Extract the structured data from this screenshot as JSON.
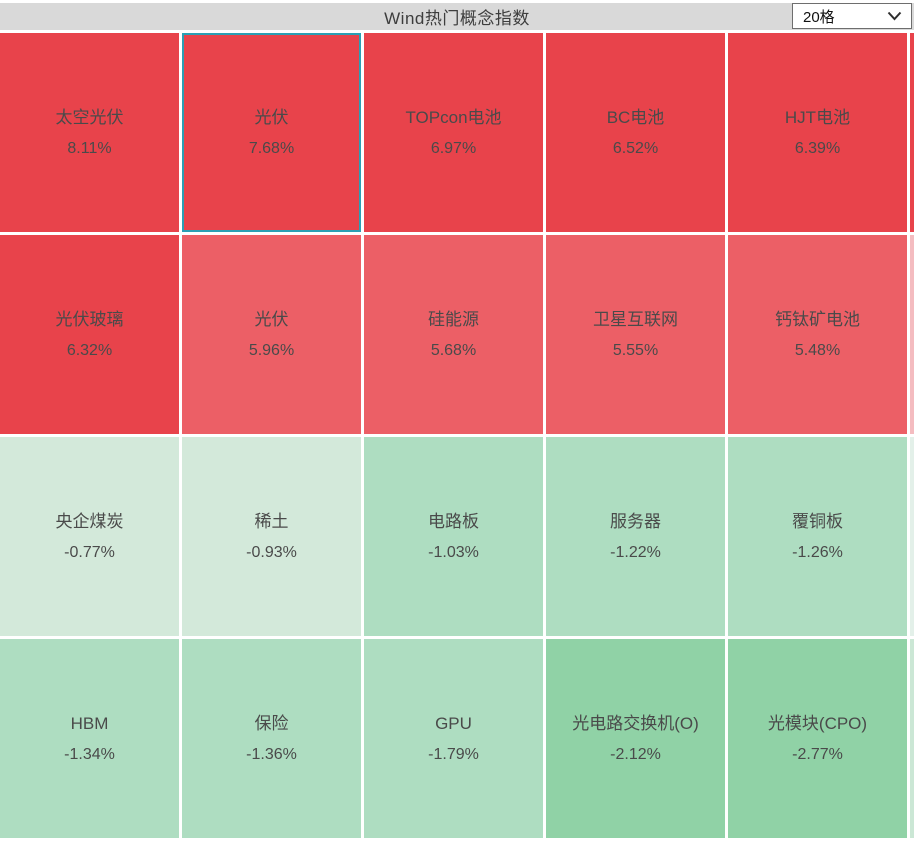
{
  "header": {
    "title": "Wind热门概念指数",
    "grid_selector": {
      "value": "20格",
      "chevron_icon": "chevron-down"
    }
  },
  "colors": {
    "header_bg": "#d9d9d9",
    "selected_cell_border": "#2b9fb4",
    "strong_red": "#e8434b",
    "light_red": "#ec5f66",
    "pale_green": "#d3e9da",
    "medium_green": "#aeddc1",
    "strong_green": "#90d2a6",
    "cell_text": "#4a4a4a"
  },
  "chart_data": {
    "type": "heatmap",
    "title": "Wind热门概念指数",
    "grid": {
      "rows": 4,
      "cols": 5,
      "visible_cells_option": "20格"
    },
    "value_unit": "%",
    "color_rule": "red = positive daily change, green = negative daily change; deeper shade = larger magnitude",
    "cells": [
      {
        "name": "太空光伏",
        "value": 8.11,
        "pct_label": "8.11%",
        "color": "#e8434b",
        "selected": false
      },
      {
        "name": "光伏",
        "value": 7.68,
        "pct_label": "7.68%",
        "color": "#e8434b",
        "selected": true
      },
      {
        "name": "TOPcon电池",
        "value": 6.97,
        "pct_label": "6.97%",
        "color": "#e8434b",
        "selected": false
      },
      {
        "name": "BC电池",
        "value": 6.52,
        "pct_label": "6.52%",
        "color": "#e8434b",
        "selected": false
      },
      {
        "name": "HJT电池",
        "value": 6.39,
        "pct_label": "6.39%",
        "color": "#e8434b",
        "selected": false
      },
      {
        "name": "光伏玻璃",
        "value": 6.32,
        "pct_label": "6.32%",
        "color": "#e8434b",
        "selected": false
      },
      {
        "name": "光伏",
        "value": 5.96,
        "pct_label": "5.96%",
        "color": "#ec5f66",
        "selected": false
      },
      {
        "name": "硅能源",
        "value": 5.68,
        "pct_label": "5.68%",
        "color": "#ec5f66",
        "selected": false
      },
      {
        "name": "卫星互联网",
        "value": 5.55,
        "pct_label": "5.55%",
        "color": "#ec5f66",
        "selected": false
      },
      {
        "name": "钙钛矿电池",
        "value": 5.48,
        "pct_label": "5.48%",
        "color": "#ec5f66",
        "selected": false
      },
      {
        "name": "央企煤炭",
        "value": -0.77,
        "pct_label": "-0.77%",
        "color": "#d3e9da",
        "selected": false
      },
      {
        "name": "稀土",
        "value": -0.93,
        "pct_label": "-0.93%",
        "color": "#d3e9da",
        "selected": false
      },
      {
        "name": "电路板",
        "value": -1.03,
        "pct_label": "-1.03%",
        "color": "#aeddc1",
        "selected": false
      },
      {
        "name": "服务器",
        "value": -1.22,
        "pct_label": "-1.22%",
        "color": "#aeddc1",
        "selected": false
      },
      {
        "name": "覆铜板",
        "value": -1.26,
        "pct_label": "-1.26%",
        "color": "#aeddc1",
        "selected": false
      },
      {
        "name": "HBM",
        "value": -1.34,
        "pct_label": "-1.34%",
        "color": "#aeddc1",
        "selected": false
      },
      {
        "name": "保险",
        "value": -1.36,
        "pct_label": "-1.36%",
        "color": "#aeddc1",
        "selected": false
      },
      {
        "name": "GPU",
        "value": -1.79,
        "pct_label": "-1.79%",
        "color": "#aeddc1",
        "selected": false
      },
      {
        "name": "光电路交换机(O)",
        "value": -2.12,
        "pct_label": "-2.12%",
        "color": "#90d2a6",
        "selected": false
      },
      {
        "name": "光模块(CPO)",
        "value": -2.77,
        "pct_label": "-2.77%",
        "color": "#90d2a6",
        "selected": false
      }
    ],
    "right_sliver_colors": [
      "#e8434b",
      "#f4bcc0",
      "#e3f0e9",
      "#cbe7d5"
    ]
  }
}
